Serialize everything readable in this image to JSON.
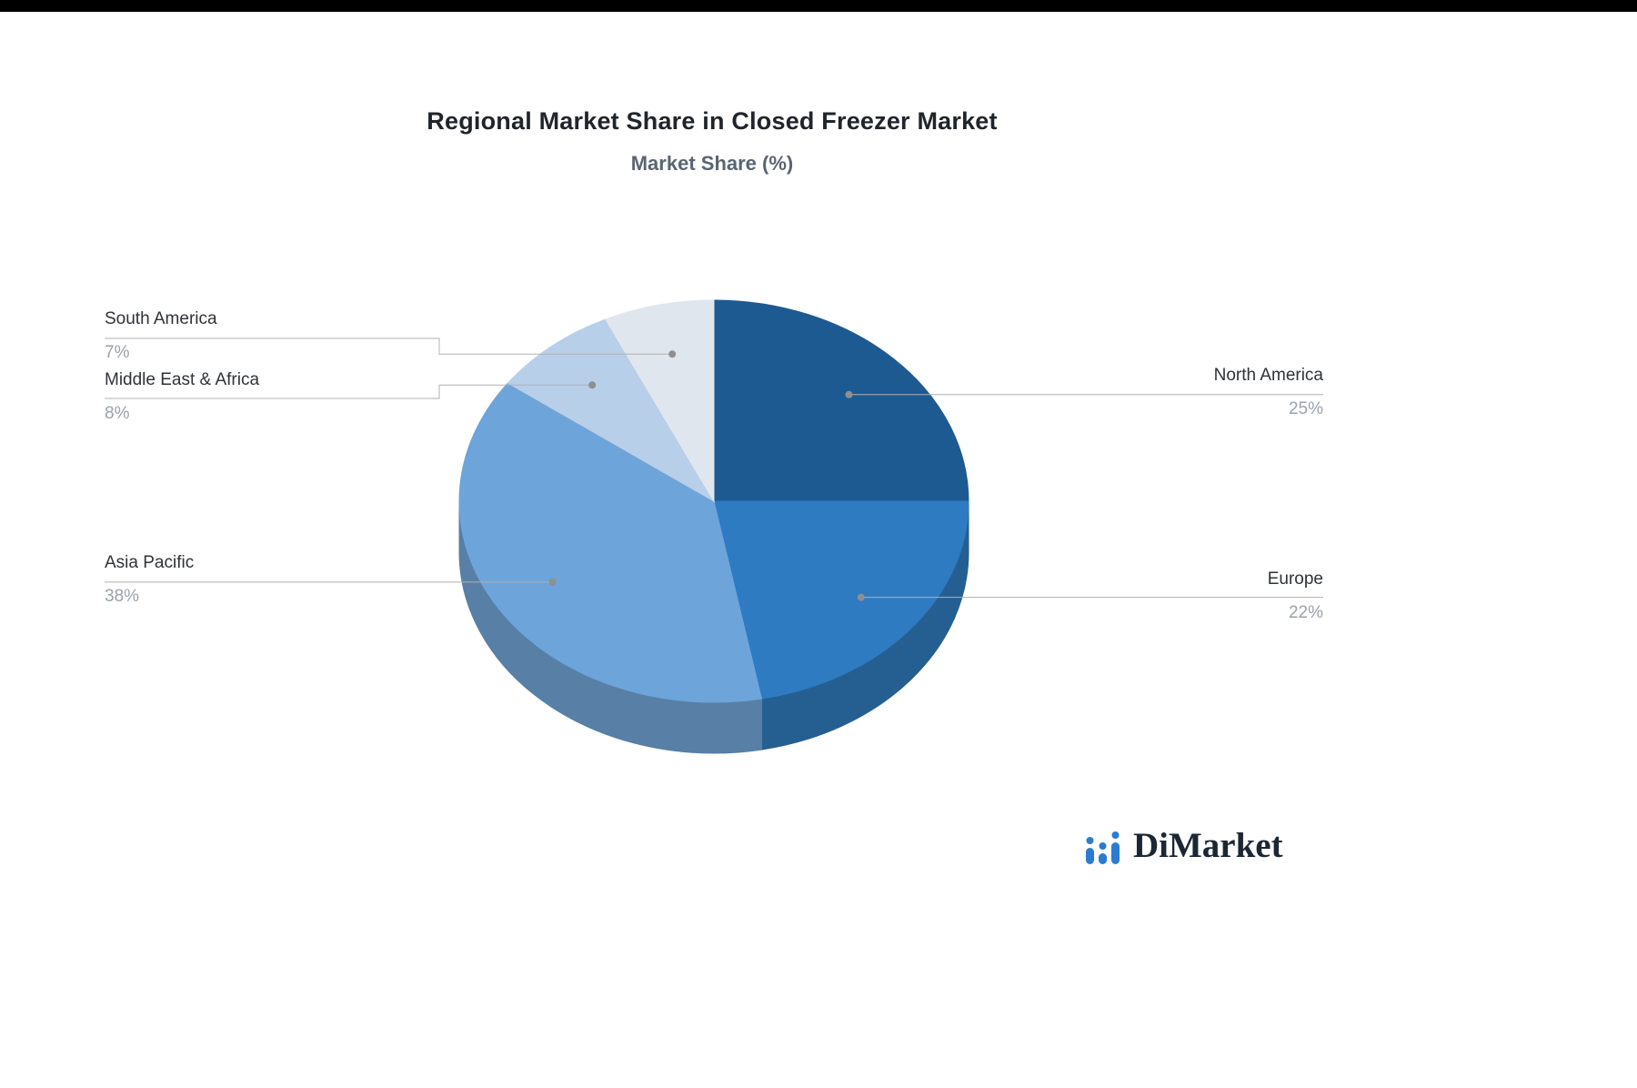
{
  "page": {
    "topbar_color": "#000000",
    "background": "#ffffff"
  },
  "chart_data": {
    "type": "pie",
    "title": "Regional Market Share in Closed Freezer Market",
    "subtitle": "Market Share (%)",
    "unit": "%",
    "start_angle_deg": -90,
    "direction": "clockwise",
    "legend_position": "callout-labels",
    "slices": [
      {
        "label": "North America",
        "value": 25,
        "display": "25%",
        "color": "#1d5a92",
        "side_color": "#163f66"
      },
      {
        "label": "Europe",
        "value": 22,
        "display": "22%",
        "color": "#2e7bc1",
        "side_color": "#255f92"
      },
      {
        "label": "Asia Pacific",
        "value": 38,
        "display": "38%",
        "color": "#6da4da",
        "side_color": "#587fa5"
      },
      {
        "label": "Middle East & Africa",
        "value": 8,
        "display": "8%",
        "color": "#b7cfe9",
        "side_color": "#8ea7c2"
      },
      {
        "label": "South America",
        "value": 7,
        "display": "7%",
        "color": "#e0e6ee",
        "side_color": "#b0b9c6"
      }
    ],
    "leader_line_color": "#b0b0b0",
    "leader_dot_color": "#8f8f8f"
  },
  "branding": {
    "logo_text": "DiMarket",
    "logo_icon": "bar-chart-with-dots",
    "logo_icon_color": "#2b7cd0",
    "logo_text_color": "#1c2733"
  }
}
